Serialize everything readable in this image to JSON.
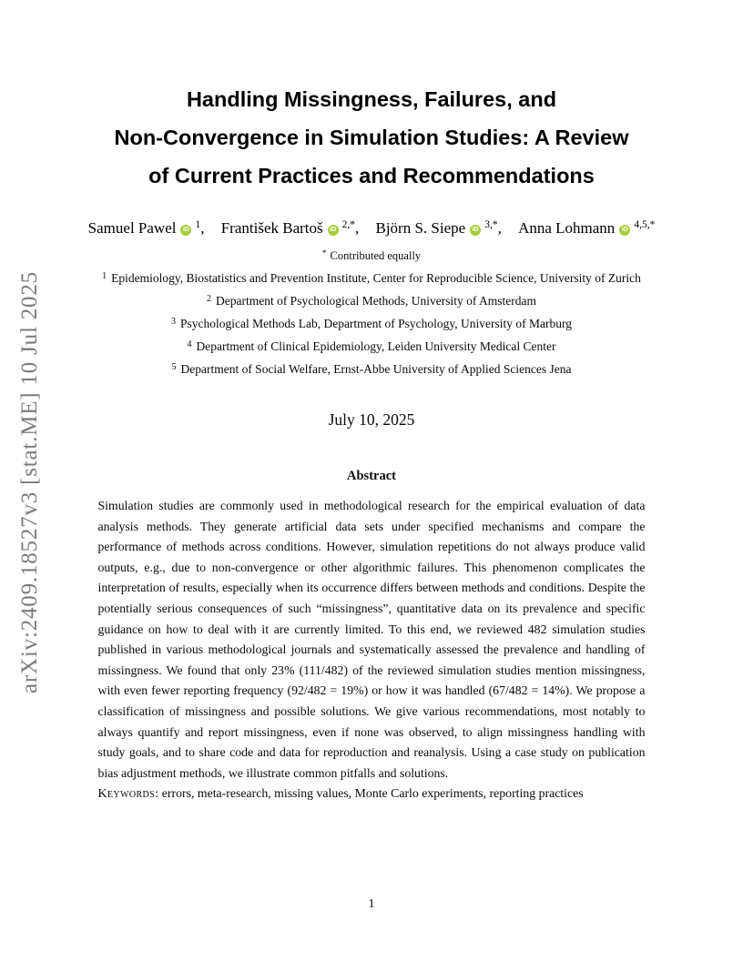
{
  "watermark": "arXiv:2409.18527v3  [stat.ME]  10 Jul 2025",
  "title": {
    "lines": [
      "Handling Missingness, Failures, and",
      "Non-Convergence in Simulation Studies: A Review",
      "of Current Practices and Recommendations"
    ]
  },
  "orcid_icon": {
    "label": "iD",
    "color": "#A6CE39"
  },
  "authors": [
    {
      "name": "Samuel Pawel",
      "sup": "1",
      "sep": ","
    },
    {
      "name": "František Bartoš",
      "sup": "2,*",
      "sep": ","
    },
    {
      "name": "Björn S. Siepe",
      "sup": "3,*",
      "sep": ","
    },
    {
      "name": "Anna Lohmann",
      "sup": "4,5,*",
      "sep": ""
    }
  ],
  "contributed": {
    "sup": "*",
    "text": "Contributed equally"
  },
  "affiliations": [
    {
      "sup": "1",
      "text": "Epidemiology, Biostatistics and Prevention Institute, Center for Reproducible Science, University of Zurich"
    },
    {
      "sup": "2",
      "text": "Department of Psychological Methods, University of Amsterdam"
    },
    {
      "sup": "3",
      "text": "Psychological Methods Lab, Department of Psychology, University of Marburg"
    },
    {
      "sup": "4",
      "text": "Department of Clinical Epidemiology, Leiden University Medical Center"
    },
    {
      "sup": "5",
      "text": "Department of Social Welfare, Ernst-Abbe University of Applied Sciences Jena"
    }
  ],
  "date": "July 10, 2025",
  "abstract": {
    "heading": "Abstract",
    "text": "Simulation studies are commonly used in methodological research for the empirical evaluation of data analysis methods. They generate artificial data sets under specified mechanisms and compare the performance of methods across conditions. However, simulation repetitions do not always produce valid outputs, e.g., due to non-convergence or other algorithmic failures. This phenomenon complicates the interpretation of results, especially when its occurrence differs between methods and conditions. Despite the potentially serious consequences of such “missingness”, quantitative data on its prevalence and specific guidance on how to deal with it are currently limited. To this end, we reviewed 482 simulation studies published in various methodological journals and systematically assessed the prevalence and handling of missingness. We found that only 23% (111/482) of the reviewed simulation studies mention missingness, with even fewer reporting frequency (92/482 = 19%) or how it was handled (67/482 = 14%). We propose a classification of missingness and possible solutions. We give various recommendations, most notably to always quantify and report missingness, even if none was observed, to align missingness handling with study goals, and to share code and data for reproduction and reanalysis. Using a case study on publication bias adjustment methods, we illustrate common pitfalls and solutions."
  },
  "keywords": {
    "label": "Keywords:",
    "text": " errors, meta-research, missing values, Monte Carlo experiments, reporting practices"
  },
  "page_number": "1"
}
